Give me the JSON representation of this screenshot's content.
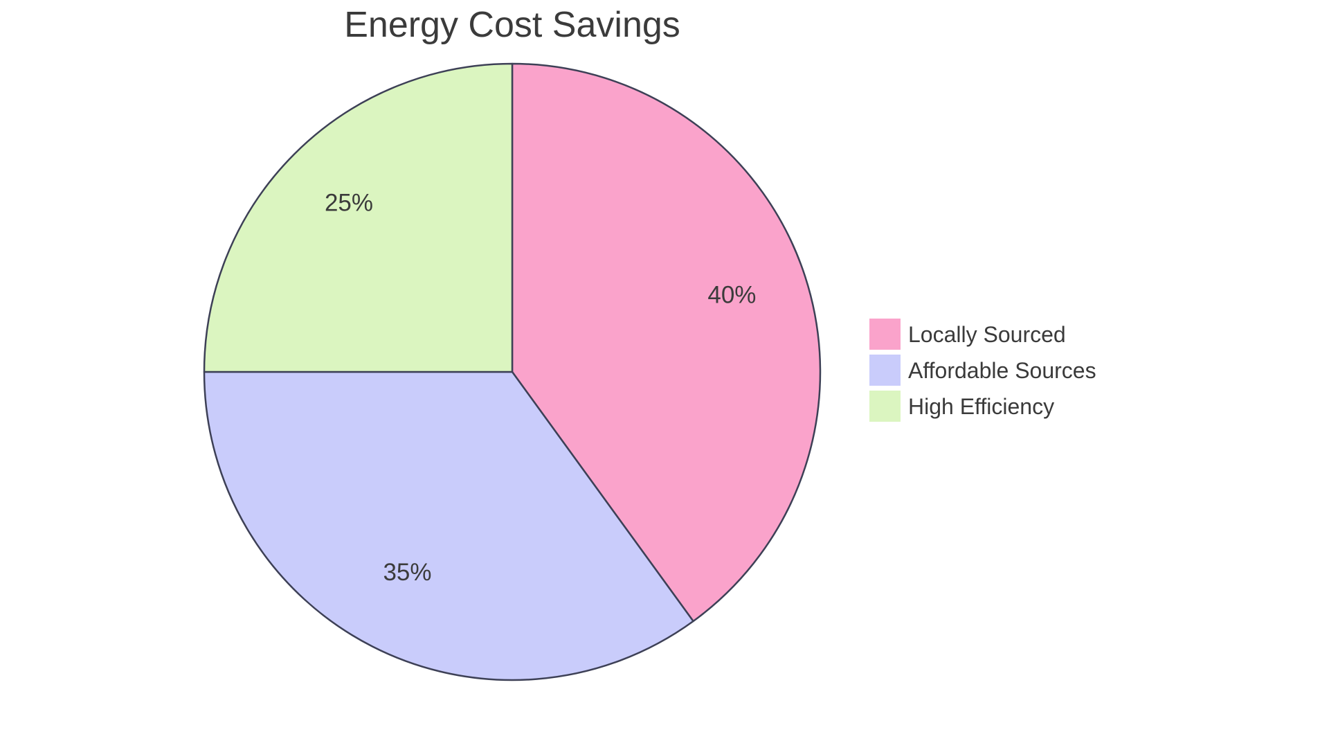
{
  "chart_data": {
    "type": "pie",
    "title": "Energy Cost Savings",
    "categories": [
      "Locally Sourced",
      "Affordable Sources",
      "High Efficiency"
    ],
    "values": [
      40,
      35,
      25
    ],
    "slice_labels": [
      "40%",
      "35%",
      "25%"
    ],
    "colors": [
      "#FAA3CB",
      "#C9CCFB",
      "#DBF5C0"
    ],
    "start_angle": "top",
    "direction": "clockwise",
    "legend_position": "right",
    "stroke_color": "#3D4056",
    "text_color": "#3B3B3B",
    "background": "#FFFFFF"
  }
}
